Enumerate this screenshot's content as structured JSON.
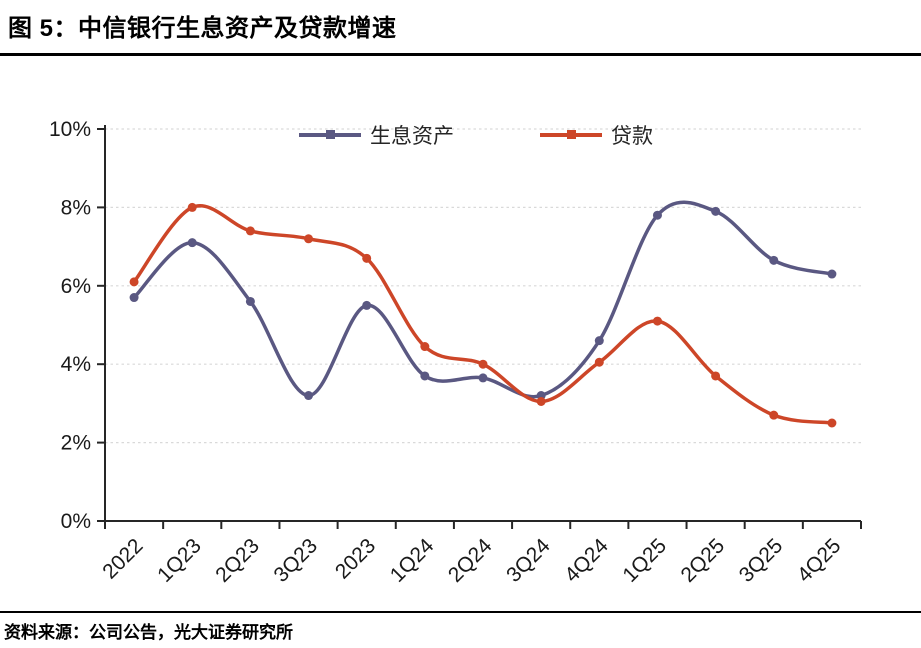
{
  "page": {
    "title": "图 5：中信银行生息资产及贷款增速",
    "source": "资料来源：公司公告，光大证券研究所"
  },
  "chart_data": {
    "type": "line",
    "title": "图 5：中信银行生息资产及贷款增速",
    "categories": [
      "2022",
      "1Q23",
      "2Q23",
      "3Q23",
      "2023",
      "1Q24",
      "2Q24",
      "3Q24",
      "4Q24",
      "1Q25",
      "2Q25",
      "3Q25",
      "4Q25"
    ],
    "series": [
      {
        "name": "生息资产",
        "color": "#5a5882",
        "values": [
          5.7,
          7.1,
          5.6,
          3.2,
          5.5,
          3.7,
          3.65,
          3.2,
          4.6,
          7.8,
          7.9,
          6.65,
          6.3
        ]
      },
      {
        "name": "贷款",
        "color": "#cd4628",
        "values": [
          6.1,
          8.0,
          7.4,
          7.2,
          6.7,
          4.45,
          4.0,
          3.05,
          4.05,
          5.1,
          3.7,
          2.7,
          2.5
        ]
      }
    ],
    "ylim": [
      0,
      10
    ],
    "yticks": [
      0,
      2,
      4,
      6,
      8,
      10
    ],
    "ytick_suffix": "%",
    "ylabel": "",
    "xlabel": "",
    "grid": "horizontal-dashed",
    "gridline_color": "#d9d9d9",
    "axis_color": "#262626",
    "legend_position": "top-center",
    "marker": "circle",
    "line_style": "smooth"
  }
}
